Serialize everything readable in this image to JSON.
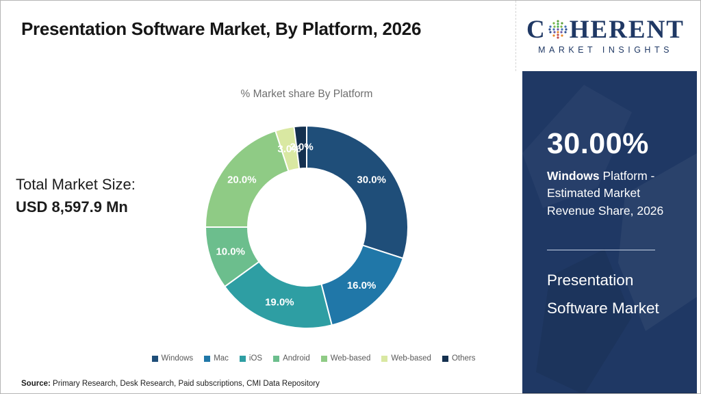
{
  "title": "Presentation Software Market, By Platform, 2026",
  "logo": {
    "brand_first_letter": "C",
    "brand_rest": "HERENT",
    "tagline": "MARKET INSIGHTS",
    "brand_color": "#1F3864"
  },
  "left_stat": {
    "label": "Total Market Size:",
    "value": "USD 8,597.9 Mn"
  },
  "chart_data": {
    "type": "pie",
    "subtype": "donut",
    "title": "% Market share By Platform",
    "categories": [
      "Windows",
      "Mac",
      "iOS",
      "Android",
      "Web-based",
      "Web-based",
      "Others"
    ],
    "values": [
      30,
      16,
      19,
      10,
      20,
      3,
      2
    ],
    "value_labels": [
      "30.0%",
      "16.0%",
      "19.0%",
      "10.0%",
      "20.0%",
      "3.0%",
      "2.0%"
    ],
    "colors": [
      "#1F4E79",
      "#2077A8",
      "#2E9EA3",
      "#6CBE8D",
      "#8FCB85",
      "#D9E8A2",
      "#14304F"
    ],
    "start_angle_deg": 0,
    "direction": "clockwise",
    "legend_position": "bottom"
  },
  "side_panel": {
    "bg_color": "#1F3864",
    "headline": "30.00%",
    "desc_bold": "Windows",
    "desc_rest": " Platform - Estimated Market Revenue Share, 2026",
    "footer_line1": "Presentation",
    "footer_line2": "Software Market"
  },
  "source": {
    "label": "Source:",
    "text": " Primary Research, Desk Research, Paid subscriptions, CMI Data Repository"
  }
}
